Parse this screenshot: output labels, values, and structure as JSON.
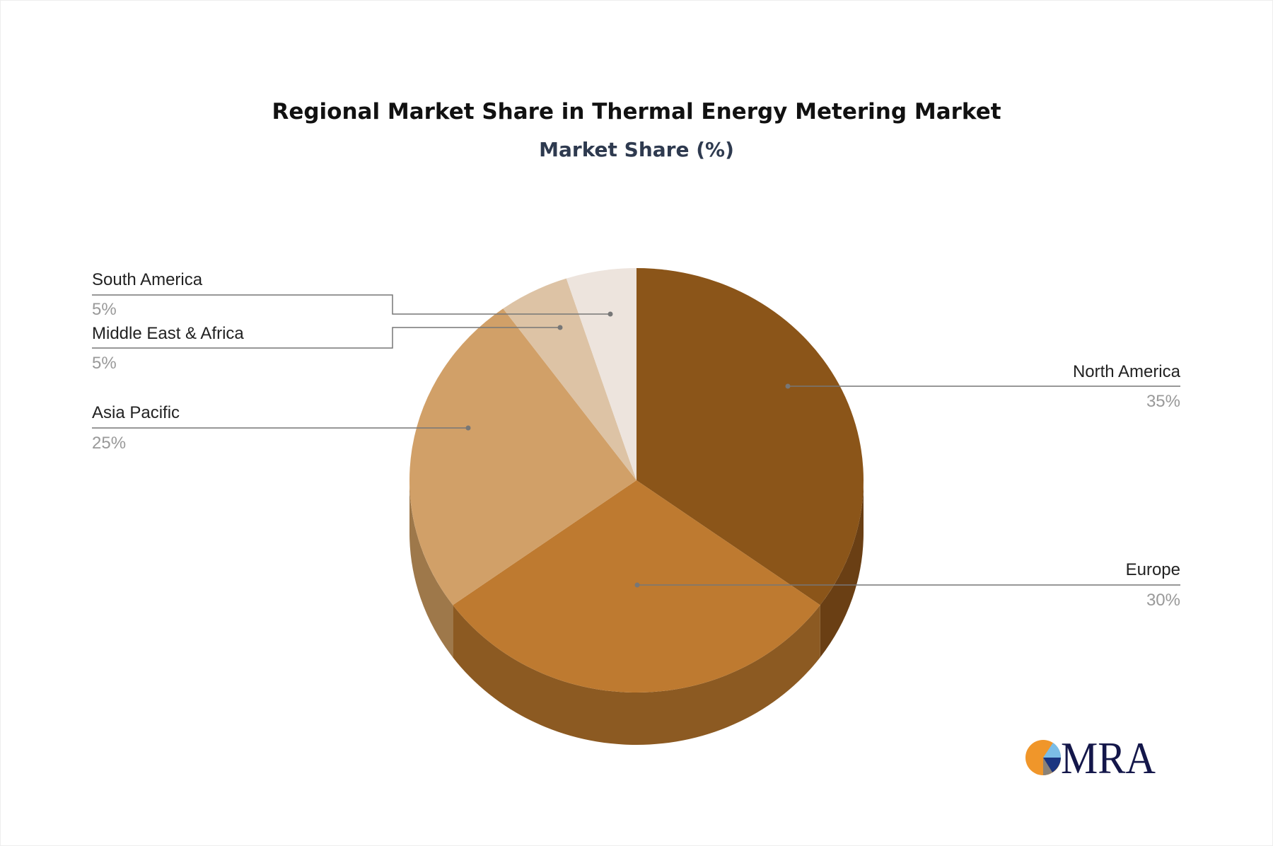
{
  "chart_data": {
    "type": "pie",
    "style": "3d",
    "title": "Regional Market Share in Thermal Energy Metering Market",
    "subtitle": "Market Share (%)",
    "categories": [
      "North America",
      "Europe",
      "Asia Pacific",
      "Middle East & Africa",
      "South America"
    ],
    "values": [
      35,
      30,
      25,
      5,
      5
    ],
    "labels": [
      "35%",
      "30%",
      "25%",
      "5%",
      "5%"
    ],
    "colors": [
      "#8b5519",
      "#be7a30",
      "#d1a068",
      "#ddc3a5",
      "#ede4dd"
    ],
    "side_colors": [
      "#6a3f14",
      "#8c5a22",
      "#9e784a",
      "#b09a80",
      "#c0b6ad"
    ],
    "legend": "callout-labels"
  },
  "logo": {
    "text": "MRA"
  }
}
